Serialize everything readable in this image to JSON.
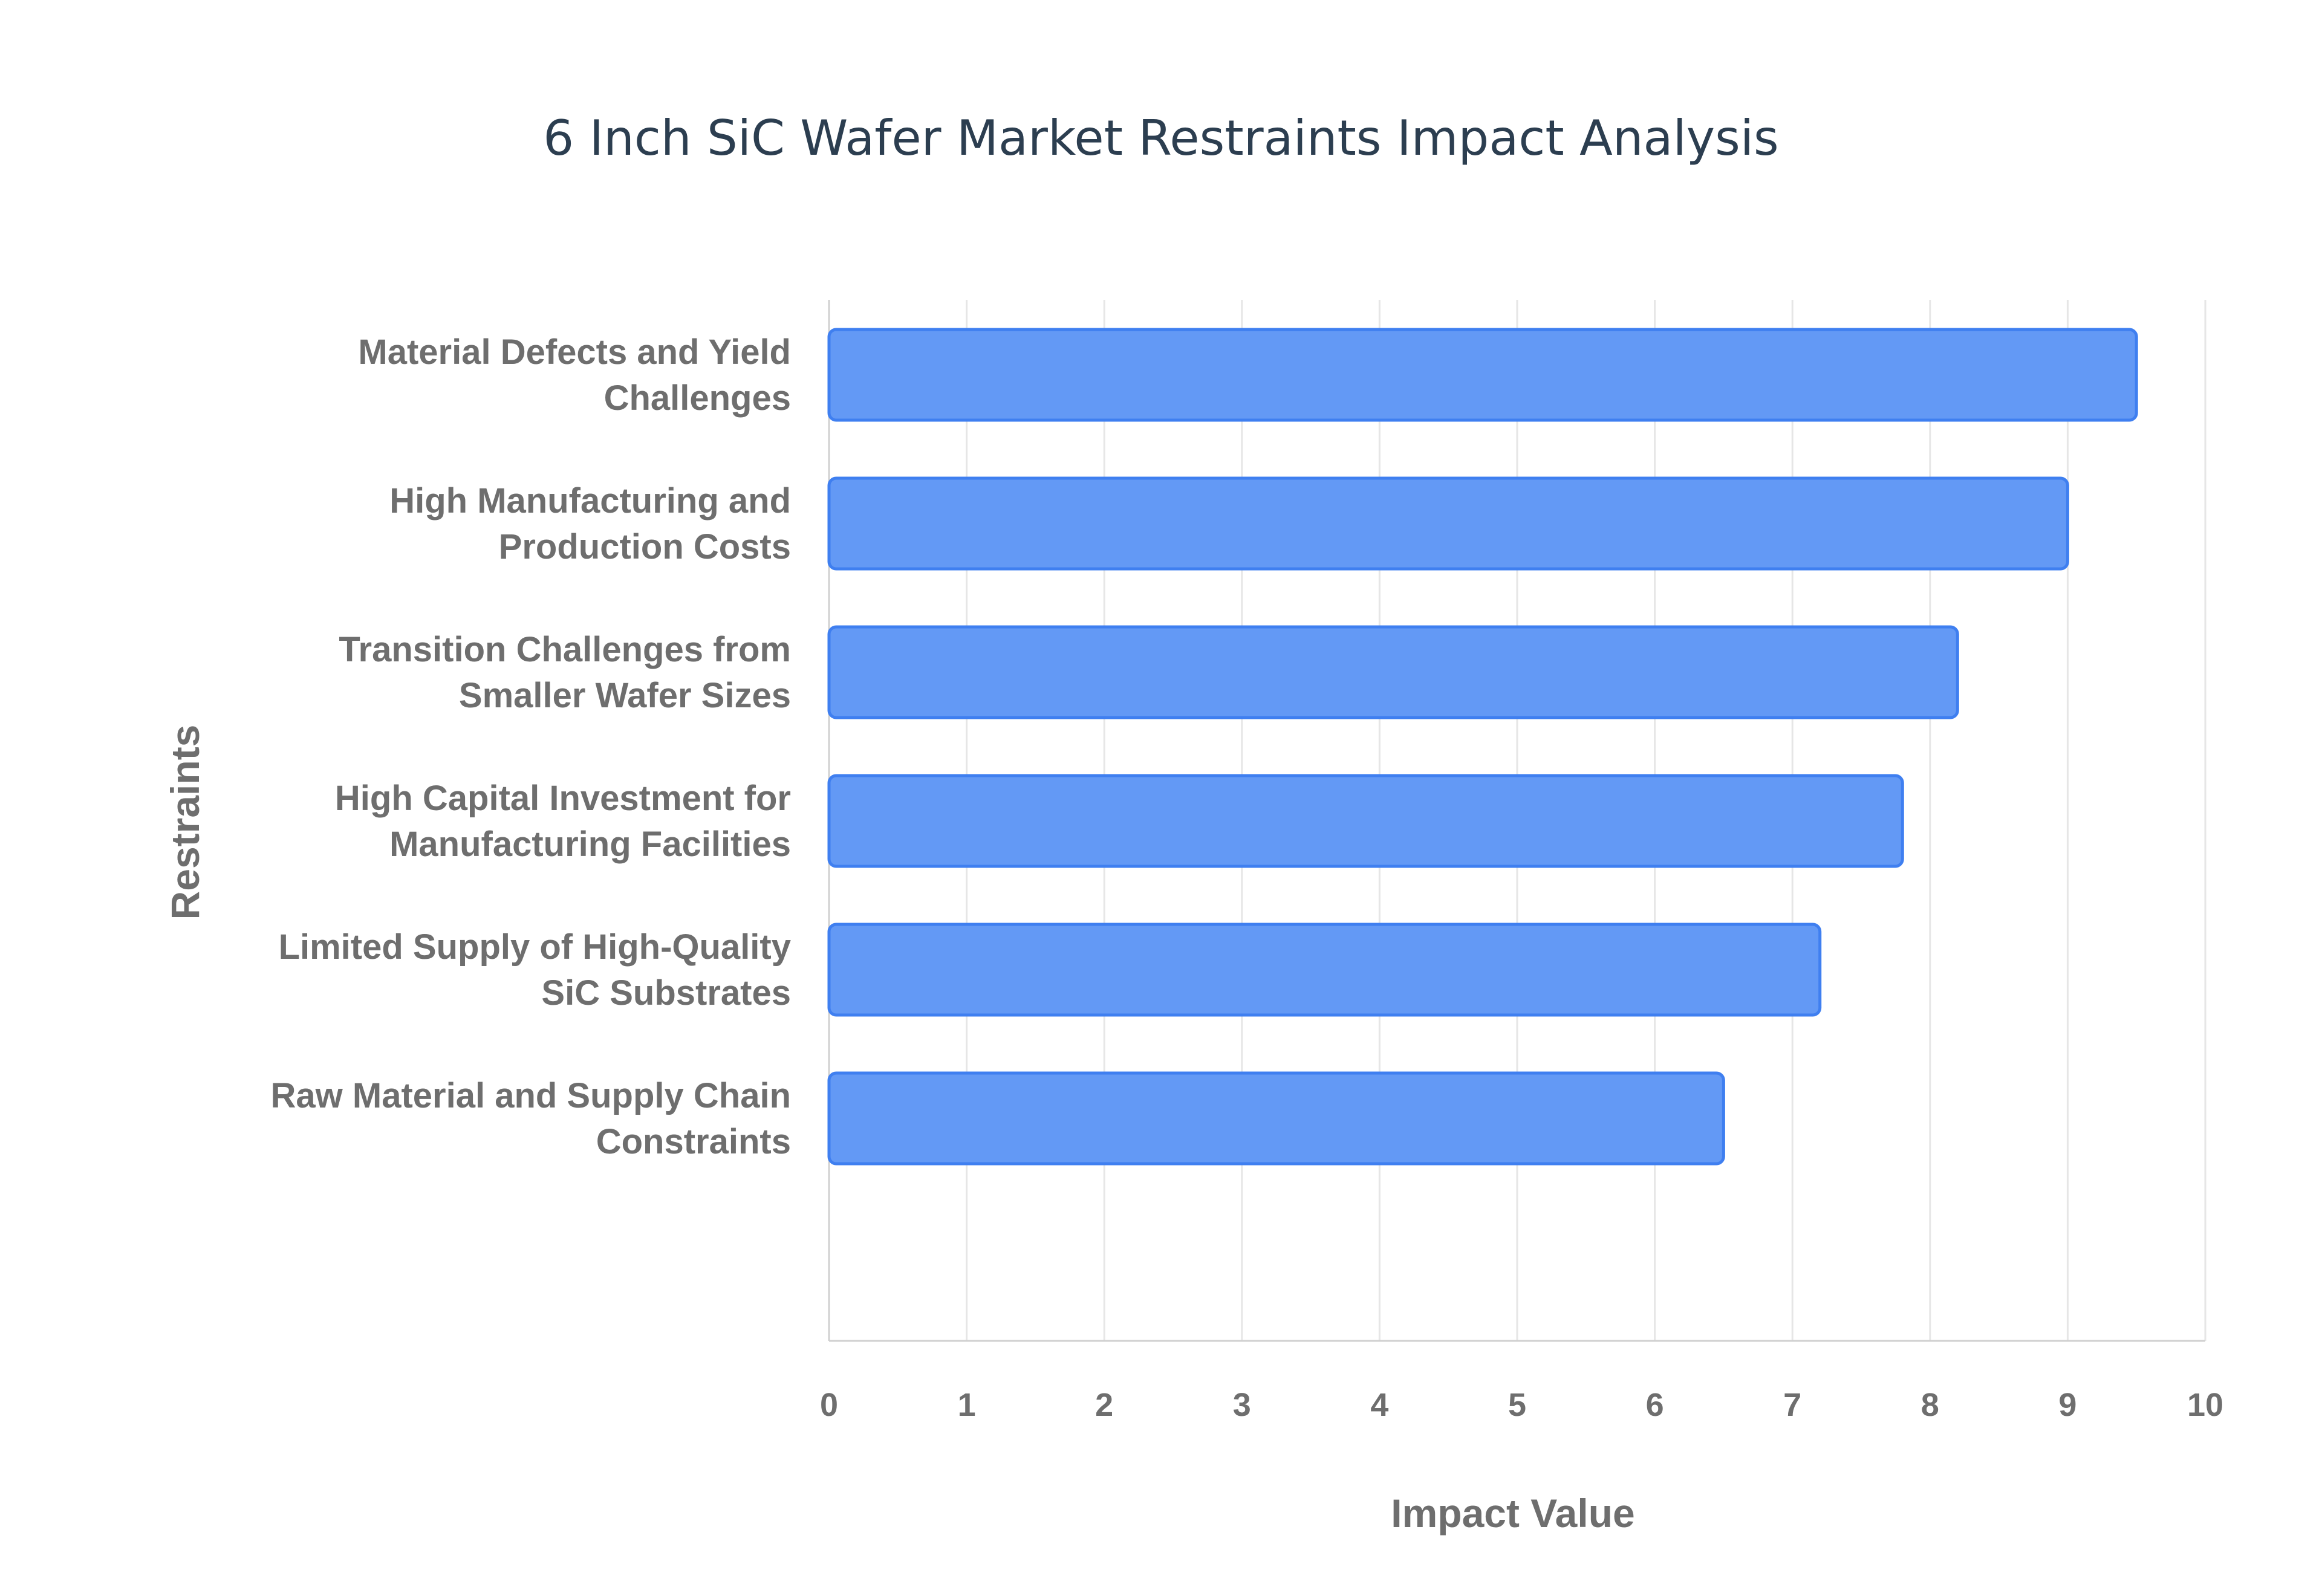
{
  "chart_data": {
    "type": "bar",
    "orientation": "horizontal",
    "title": "6 Inch SiC Wafer Market Restraints Impact Analysis",
    "xlabel": "Impact Value",
    "ylabel": "Restraints",
    "categories": [
      [
        "Material Defects and Yield",
        "Challenges"
      ],
      [
        "High Manufacturing and",
        "Production Costs"
      ],
      [
        "Transition Challenges from",
        "Smaller Wafer Sizes"
      ],
      [
        "High Capital Investment for",
        "Manufacturing Facilities"
      ],
      [
        "Limited Supply of High-Quality",
        "SiC Substrates"
      ],
      [
        "Raw Material and Supply Chain",
        "Constraints"
      ]
    ],
    "values": [
      9.5,
      9.0,
      8.2,
      7.8,
      7.2,
      6.5
    ],
    "xlim": [
      0,
      10
    ],
    "xticks": [
      "0",
      "1",
      "2",
      "3",
      "4",
      "5",
      "6",
      "7",
      "8",
      "9",
      "10"
    ],
    "grid": true,
    "legend": "none",
    "bar_color": "#6399f5",
    "bar_border_color": "#3f7ff0"
  }
}
